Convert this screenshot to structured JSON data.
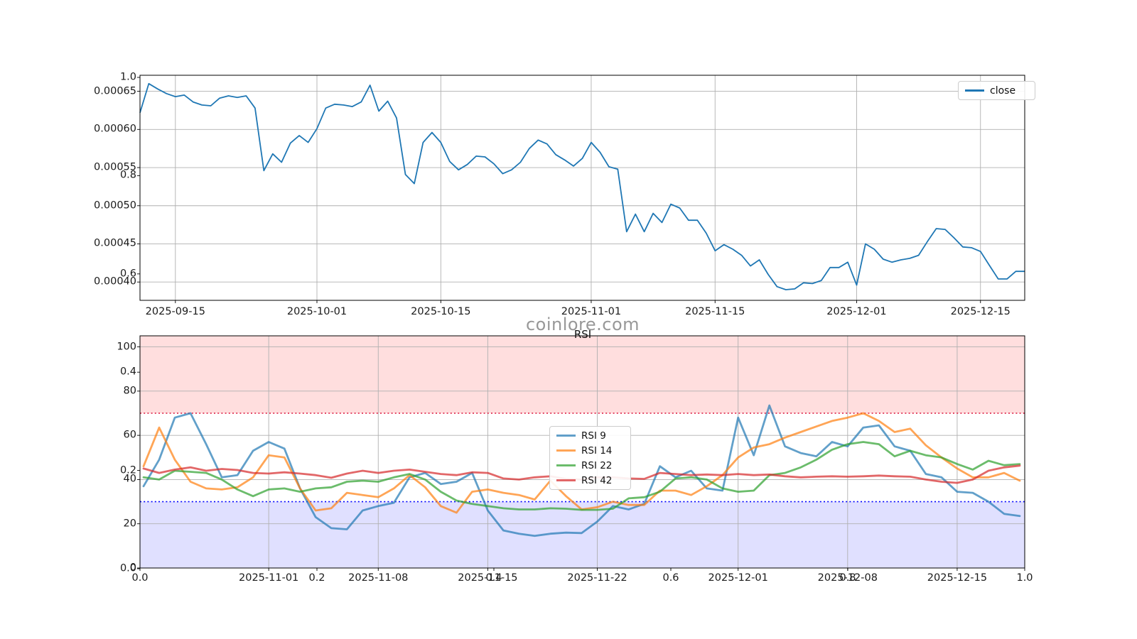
{
  "watermark": "coinlore.com",
  "figure_background": "#ffffff",
  "grid_color": "#b0b0b0",
  "chart_data": [
    {
      "type": "line",
      "title": "",
      "legend_labels": [
        "close"
      ],
      "legend_position": "upper right",
      "grid": true,
      "ylim": [
        0.000376,
        0.000671
      ],
      "y_tick_labels": [
        "0.00040",
        "0.00045",
        "0.00050",
        "0.00055",
        "0.00060",
        "0.00065"
      ],
      "y_tick_values": [
        0.0004,
        0.00045,
        0.0005,
        0.00055,
        0.0006,
        0.00065
      ],
      "x_tick_labels": [
        "2025-09-15",
        "2025-10-01",
        "2025-10-15",
        "2025-11-01",
        "2025-11-15",
        "2025-12-01",
        "2025-12-15"
      ],
      "x_tick_day_offsets": [
        4,
        20,
        34,
        51,
        65,
        81,
        95
      ],
      "x_start_date": "2025-09-11",
      "series": [
        {
          "name": "close",
          "color": "#1f77b4",
          "opacity": 1,
          "width": 1.8,
          "values": [
            0.000622,
            0.00066,
            0.000653,
            0.000647,
            0.000643,
            0.000645,
            0.000636,
            0.000632,
            0.000631,
            0.000641,
            0.000644,
            0.000642,
            0.000644,
            0.000628,
            0.000546,
            0.000568,
            0.000557,
            0.000582,
            0.000592,
            0.000583,
            0.000601,
            0.000628,
            0.000633,
            0.000632,
            0.00063,
            0.000636,
            0.000658,
            0.000624,
            0.000637,
            0.000615,
            0.000541,
            0.000529,
            0.000583,
            0.000596,
            0.000583,
            0.000558,
            0.000547,
            0.000554,
            0.000565,
            0.000564,
            0.000555,
            0.000542,
            0.000547,
            0.000557,
            0.000575,
            0.000586,
            0.000581,
            0.000567,
            0.00056,
            0.000552,
            0.000562,
            0.000583,
            0.00057,
            0.000551,
            0.000548,
            0.000466,
            0.000489,
            0.000466,
            0.00049,
            0.000478,
            0.000502,
            0.000497,
            0.000481,
            0.000481,
            0.000464,
            0.000441,
            0.000449,
            0.000443,
            0.000435,
            0.000421,
            0.000429,
            0.00041,
            0.000394,
            0.00039,
            0.000391,
            0.000399,
            0.000398,
            0.000402,
            0.000419,
            0.000419,
            0.000426,
            0.000396,
            0.00045,
            0.000443,
            0.00043,
            0.000426,
            0.000429,
            0.000431,
            0.000435,
            0.000453,
            0.00047,
            0.000469,
            0.000458,
            0.000446,
            0.000445,
            0.00044,
            0.000422,
            0.000404,
            0.000404,
            0.000414,
            0.000414
          ]
        }
      ]
    },
    {
      "type": "line",
      "title": "RSI",
      "legend_labels": [
        "RSI 9",
        "RSI 14",
        "RSI 22",
        "RSI 42"
      ],
      "legend_position": "center",
      "grid": true,
      "ylim": [
        0,
        105
      ],
      "y_tick_labels": [
        "0",
        "20",
        "40",
        "60",
        "80",
        "100"
      ],
      "y_tick_values": [
        0,
        20,
        40,
        60,
        80,
        100
      ],
      "x_tick_labels": [
        "2025-11-01",
        "2025-11-08",
        "2025-11-15",
        "2025-11-22",
        "2025-12-01",
        "2025-12-08",
        "2025-12-15"
      ],
      "x_tick_point_indices": [
        8,
        15,
        22,
        29,
        38,
        45,
        52
      ],
      "overbought_line": {
        "value": 70,
        "color": "crimson",
        "style": "dotted"
      },
      "oversold_line": {
        "value": 30,
        "color": "blue",
        "style": "dotted"
      },
      "overbought_band": {
        "from": 70,
        "to": 105,
        "color": "rgba(255,0,0,0.13)"
      },
      "oversold_band": {
        "from": 0,
        "to": 30,
        "color": "rgba(0,0,255,0.12)"
      },
      "series": [
        {
          "name": "RSI 9",
          "color": "#1f77b4",
          "opacity": 0.7,
          "width": 2.8,
          "values": [
            37,
            49,
            68,
            70,
            56,
            41,
            42,
            53,
            57,
            54,
            36,
            23,
            18,
            17.5,
            26,
            28,
            29.5,
            41,
            43,
            38,
            39,
            43,
            26,
            17,
            15.5,
            14.5,
            15.5,
            16,
            15.8,
            21,
            28,
            26.5,
            29,
            46,
            41,
            44,
            36,
            35,
            68,
            51,
            73.5,
            55,
            52,
            50.5,
            57,
            55,
            63.5,
            64.5,
            55,
            53,
            42.5,
            41,
            34.5,
            34,
            30,
            24.5,
            23.5
          ]
        },
        {
          "name": "RSI 14",
          "color": "#ff7f0e",
          "opacity": 0.7,
          "width": 2.8,
          "values": [
            46,
            63.5,
            49,
            39,
            36,
            35.5,
            36.5,
            41,
            51,
            50,
            36,
            26,
            27,
            34,
            33,
            32,
            36,
            42,
            36.5,
            28,
            25,
            34.5,
            35.5,
            34,
            33,
            31,
            39.5,
            32.5,
            26.5,
            27.5,
            30,
            28.5,
            28.5,
            35,
            35,
            33,
            37,
            42,
            50,
            54.5,
            56,
            59,
            61.5,
            64,
            66.5,
            68,
            70,
            66.5,
            61.5,
            63,
            55.5,
            50,
            45,
            41,
            41,
            43,
            39.5
          ]
        },
        {
          "name": "RSI 22",
          "color": "#2ca02c",
          "opacity": 0.7,
          "width": 2.8,
          "values": [
            41,
            40,
            44,
            43.5,
            43,
            40,
            35.5,
            32.5,
            35.5,
            36,
            34.5,
            36,
            36.5,
            39,
            39.5,
            39,
            41,
            42.5,
            40,
            34.5,
            30.5,
            29,
            28,
            27,
            26.5,
            26.5,
            27,
            26.8,
            26.3,
            26.3,
            26.8,
            31.5,
            32,
            34.5,
            40.5,
            41,
            40,
            36,
            34.5,
            35,
            42,
            43,
            45.5,
            49,
            53.5,
            56,
            57,
            56,
            50.5,
            53,
            51,
            50,
            47,
            44.5,
            48.5,
            46.5,
            47
          ]
        },
        {
          "name": "RSI 42",
          "color": "#d62728",
          "opacity": 0.7,
          "width": 2.8,
          "values": [
            45,
            43,
            44.5,
            45.5,
            44,
            44.8,
            44.3,
            43,
            42.7,
            43.3,
            42.7,
            42,
            40.8,
            42.7,
            44,
            43,
            44,
            44.5,
            43.5,
            42.5,
            42,
            43.3,
            43,
            40.5,
            40,
            41,
            41.5,
            40.3,
            40,
            41,
            41,
            40.5,
            40.3,
            43,
            42.5,
            42,
            42.3,
            42,
            42.5,
            42,
            42.3,
            41.5,
            41,
            41.3,
            41.5,
            41.3,
            41.5,
            41.8,
            41.5,
            41.3,
            40,
            39,
            38.5,
            40,
            44,
            45.5,
            46.3
          ]
        }
      ]
    }
  ],
  "overlay_axis": {
    "x_tick_labels": [
      "0.0",
      "0.2",
      "0.4",
      "0.6",
      "0.8",
      "1.0"
    ],
    "y_tick_labels": [
      "1.0",
      "0.8",
      "0.6",
      "0.4",
      "0.2",
      "0.0"
    ]
  }
}
